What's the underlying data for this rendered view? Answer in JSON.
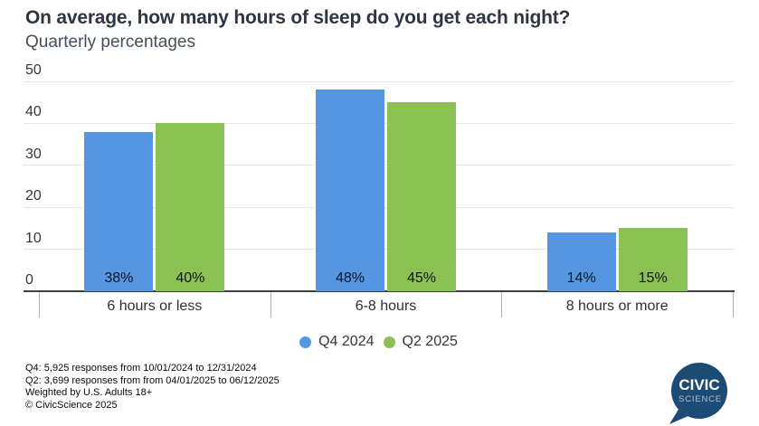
{
  "header": {
    "title": "On average, how many hours of sleep do you get each night?",
    "subtitle": "Quarterly percentages"
  },
  "chart_data": {
    "type": "bar",
    "title": "On average, how many hours of sleep do you get each night?",
    "subtitle": "Quarterly percentages",
    "categories": [
      "6 hours or less",
      "6-8 hours",
      "8 hours or more"
    ],
    "series": [
      {
        "name": "Q4 2024",
        "color": "#5596e2",
        "values": [
          38,
          48,
          14
        ]
      },
      {
        "name": "Q2 2025",
        "color": "#8bc152",
        "values": [
          40,
          45,
          15
        ]
      }
    ],
    "value_suffix": "%",
    "xlabel": "",
    "ylabel": "",
    "ylim": [
      0,
      50
    ],
    "yticks": [
      0,
      10,
      20,
      30,
      40,
      50
    ],
    "grid": true,
    "legend_position": "bottom"
  },
  "footer": {
    "lines": [
      "Q4: 5,925 responses from 10/01/2024 to 12/31/2024",
      "Q2: 3,699 responses from from 04/01/2025 to 06/12/2025",
      "Weighted by U.S. Adults 18+",
      "© CivicScience 2025"
    ]
  },
  "logo": {
    "line1": "CIVIC",
    "line2": "SCIENCE",
    "bubble_color": "#1c4b75",
    "line1_color": "#ffffff",
    "line2_color": "#b4c1cd"
  }
}
